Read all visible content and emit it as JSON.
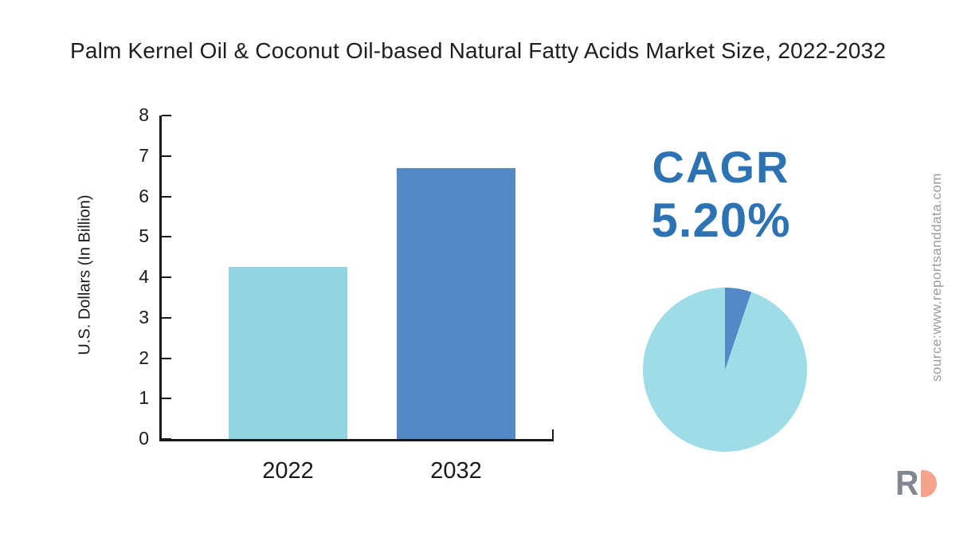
{
  "title": "Palm Kernel Oil & Coconut Oil-based Natural Fatty Acids Market Size, 2022-2032",
  "chart_data": {
    "type": "bar",
    "title": "Palm Kernel Oil & Coconut Oil-based Natural Fatty Acids Market Size, 2022-2032",
    "categories": [
      "2022",
      "2032"
    ],
    "values": [
      4.25,
      6.7
    ],
    "xlabel": "",
    "ylabel": "U.S. Dollars (In Billion)",
    "ylim": [
      0,
      8
    ],
    "yticks": [
      0,
      1,
      2,
      3,
      4,
      5,
      6,
      7,
      8
    ],
    "grid": false,
    "legend": false,
    "bar_colors": [
      "#92d4e0",
      "#5489c5"
    ]
  },
  "cagr": {
    "label": "CAGR",
    "value": "5.20%",
    "percent": 5.2,
    "color": "#2d73b3"
  },
  "pie": {
    "slice_percent": 5.2,
    "main_color": "#9edde8",
    "slice_color": "#5489c5"
  },
  "source": {
    "text": "source:www.reportsanddata.com",
    "color": "#9b9b9b"
  },
  "logo": {
    "letter": "R",
    "letter_color": "#82869​1",
    "gray": "#82868f",
    "salmon": "#f4a38c"
  },
  "colors": {
    "background": "#ffffff",
    "axis": "#1a1a1a",
    "text": "#1a1a1a"
  }
}
